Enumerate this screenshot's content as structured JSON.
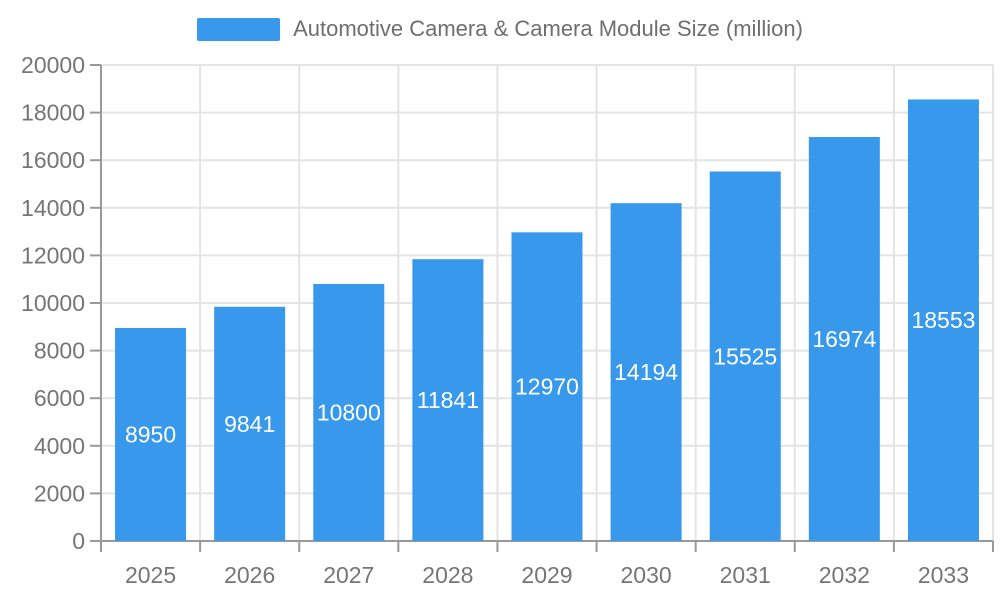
{
  "legend": {
    "label": "Automotive Camera & Camera Module Size (million)"
  },
  "chart_data": {
    "type": "bar",
    "title": "Automotive Camera & Camera Module Size (million)",
    "series": [
      {
        "name": "Automotive Camera & Camera Module Size (million)",
        "values": [
          8950,
          9841,
          10800,
          11841,
          12970,
          14194,
          15525,
          16974,
          18553
        ]
      }
    ],
    "categories": [
      "2025",
      "2026",
      "2027",
      "2028",
      "2029",
      "2030",
      "2031",
      "2032",
      "2033"
    ],
    "xlabel": "",
    "ylabel": "",
    "ylim": [
      0,
      20000
    ],
    "ytick_step": 2000,
    "ytick_labels": [
      "0",
      "2000",
      "4000",
      "6000",
      "8000",
      "10000",
      "12000",
      "14000",
      "16000",
      "18000",
      "20000"
    ],
    "grid": true,
    "legend_position": "top-center",
    "value_label_position": "center-of-bar",
    "colors": {
      "bar": "#3899EC",
      "bar_value_label": "#FFFFFF",
      "axis_line": "#999999",
      "axis_tick_label": "#757575",
      "grid_line": "#E4E4E4",
      "title": "#6E6E6E",
      "background": "#FFFFFF"
    }
  }
}
